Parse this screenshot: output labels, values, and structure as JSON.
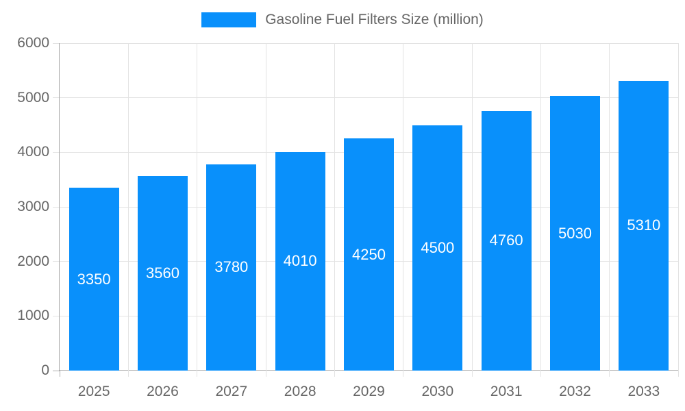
{
  "legend": {
    "label": "Gasoline Fuel Filters Size (million)"
  },
  "chart_data": {
    "type": "bar",
    "title": "Gasoline Fuel Filters Size (million)",
    "categories": [
      "2025",
      "2026",
      "2027",
      "2028",
      "2029",
      "2030",
      "2031",
      "2032",
      "2033"
    ],
    "series": [
      {
        "name": "Gasoline Fuel Filters Size (million)",
        "values": [
          3350,
          3560,
          3780,
          4010,
          4250,
          4500,
          4760,
          5030,
          5310
        ]
      }
    ],
    "bar_value_labels": [
      "3350",
      "3560",
      "3780",
      "4010",
      "4250",
      "4500",
      "4760",
      "5030",
      "5310"
    ],
    "xlabel": "",
    "ylabel": "",
    "ylim": [
      0,
      6000
    ],
    "yticks": [
      0,
      1000,
      2000,
      3000,
      4000,
      5000,
      6000
    ],
    "grid": true,
    "legend_position": "top",
    "colors": {
      "bar": "#0990FB",
      "bar_value_label": "#FFFFFF",
      "axis_text": "#666666",
      "grid_line": "#E3E3E3",
      "axis_line": "#ABABAB",
      "background": "#FFFFFF"
    }
  }
}
